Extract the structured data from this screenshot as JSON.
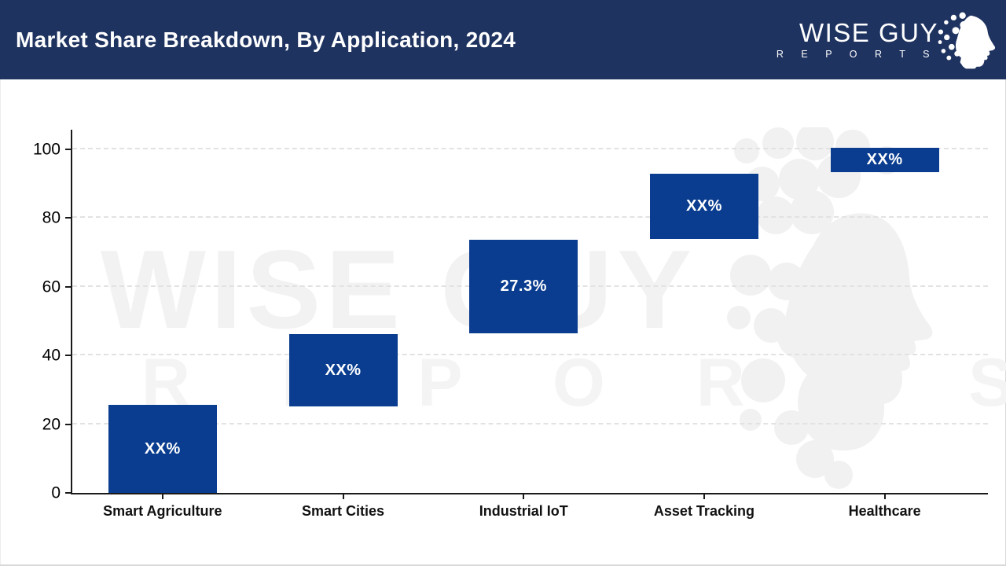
{
  "header": {
    "title": "Market Share Breakdown, By Application, 2024",
    "logo": {
      "line1": "WISE GUY",
      "line2": "R E P O R T S"
    }
  },
  "watermark": {
    "line1": "WISE GUY",
    "line2": "R E P O R T S"
  },
  "colors": {
    "header_bg": "#1f3360",
    "bar": "#0a3d8f",
    "bar_label": "#ffffff",
    "grid": "#e2e2e2",
    "axis": "#1a1a1a",
    "watermark": "#f2f2f2"
  },
  "chart_data": {
    "type": "bar",
    "subtype": "floating-waterfall",
    "title": "Market Share Breakdown, By Application, 2024",
    "xlabel": "",
    "ylabel": "",
    "categories": [
      "Smart Agriculture",
      "Smart Cities",
      "Industrial IoT",
      "Asset Tracking",
      "Healthcare"
    ],
    "segments": [
      {
        "category": "Smart Agriculture",
        "start": 0,
        "end": 25.5,
        "label": "XX%"
      },
      {
        "category": "Smart Cities",
        "start": 25.2,
        "end": 46.1,
        "label": "XX%"
      },
      {
        "category": "Industrial IoT",
        "start": 46.4,
        "end": 73.7,
        "label": "27.3%"
      },
      {
        "category": "Asset Tracking",
        "start": 73.9,
        "end": 92.7,
        "label": "XX%"
      },
      {
        "category": "Healthcare",
        "start": 93.2,
        "end": 100.4,
        "label": "XX%"
      }
    ],
    "y_ticks": [
      0,
      20,
      40,
      60,
      80,
      100
    ],
    "ylim": [
      0,
      105.6
    ],
    "grid": "horizontal-dashed",
    "legend": "none",
    "bar_color": "#0a3d8f",
    "label_color": "#ffffff"
  }
}
